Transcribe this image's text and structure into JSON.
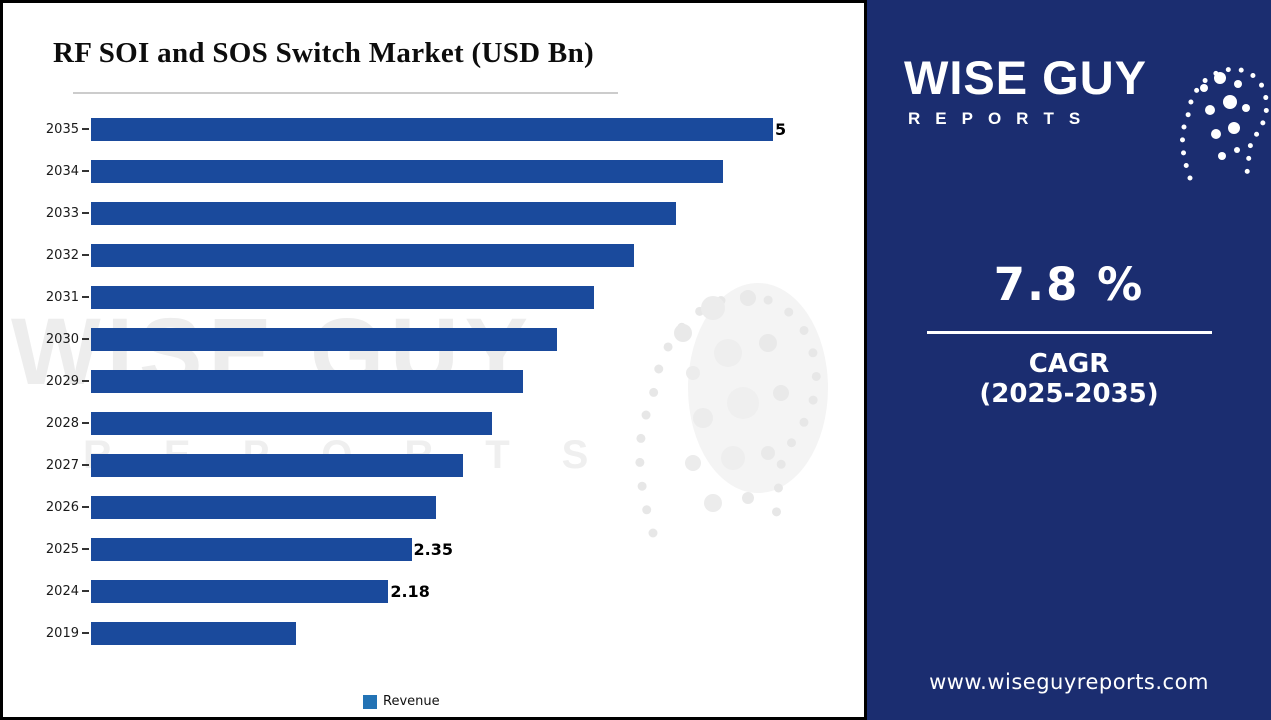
{
  "chart_data": {
    "type": "bar",
    "orientation": "horizontal",
    "title": "RF SOI and SOS Switch Market (USD Bn)",
    "xlabel": "",
    "ylabel": "",
    "categories": [
      "2035",
      "2034",
      "2033",
      "2032",
      "2031",
      "2030",
      "2029",
      "2028",
      "2027",
      "2026",
      "2025",
      "2024",
      "2019"
    ],
    "values": [
      5.0,
      4.63,
      4.29,
      3.98,
      3.69,
      3.42,
      3.17,
      2.94,
      2.73,
      2.53,
      2.35,
      2.18,
      1.5
    ],
    "data_labels": [
      "5",
      "",
      "",
      "",
      "",
      "",
      "",
      "",
      "",
      "",
      "2.35",
      "2.18",
      ""
    ],
    "xlim": [
      0,
      5.6
    ],
    "grid": false,
    "legend": [
      "Revenue"
    ],
    "legend_position": "bottom",
    "bar_color": "#1a4a9c",
    "legend_color": "#2373b5"
  },
  "watermark": {
    "line1": "WISE GUY",
    "line2": "REPORTS"
  },
  "sidebar": {
    "bg_color": "#1b2d70",
    "logo_line1": "WISE GUY",
    "logo_line2": "REPORTS",
    "cagr_value": "7.8 %",
    "cagr_label1": "CAGR",
    "cagr_label2": "(2025-2035)",
    "website": "www.wiseguyreports.com"
  }
}
